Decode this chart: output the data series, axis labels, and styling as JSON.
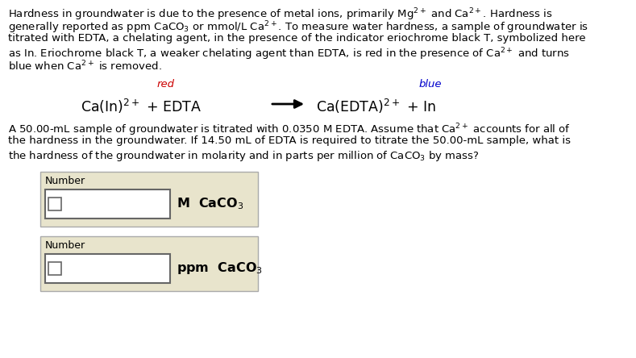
{
  "text_color": "#000000",
  "red_color": "#cc0000",
  "blue_color": "#0000cc",
  "box_bg": "#e8e4cc",
  "box_border": "#aaaaaa",
  "inner_box_border": "#666666",
  "font_size": 9.5,
  "eq_font_size": 12.5,
  "label_font_size": 9.0,
  "unit_font_size": 11.5,
  "figw": 7.89,
  "figh": 4.44,
  "dpi": 100,
  "para1_lines": [
    "Hardness in groundwater is due to the presence of metal ions, primarily Mg$^{2+}$ and Ca$^{2+}$. Hardness is",
    "generally reported as ppm CaCO$_3$ or mmol/L Ca$^{2+}$. To measure water hardness, a sample of groundwater is",
    "titrated with EDTA, a chelating agent, in the presence of the indicator eriochrome black T, symbolized here",
    "as In. Eriochrome black T, a weaker chelating agent than EDTA, is red in the presence of Ca$^{2+}$ and turns",
    "blue when Ca$^{2+}$ is removed."
  ],
  "red_label": "red",
  "blue_label": "blue",
  "para2_lines": [
    "A 50.00-mL sample of groundwater is titrated with 0.0350 M EDTA. Assume that Ca$^{2+}$ accounts for all of",
    "the hardness in the groundwater. If 14.50 mL of EDTA is required to titrate the 50.00-mL sample, what is",
    "the hardness of the groundwater in molarity and in parts per million of CaCO$_3$ by mass?"
  ],
  "number_label": "Number",
  "unit1": "M  CaCO$_3$",
  "unit2": "ppm  CaCO$_3$"
}
